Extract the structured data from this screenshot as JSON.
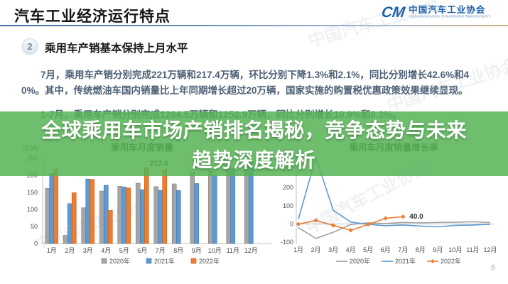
{
  "header": {
    "title": "汽车工业经济运行特点",
    "logo": {
      "mark": "CM",
      "name_cn": "中国汽车工业协会",
      "name_en": "China Association of Automobile Manufacturers",
      "brand_color": "#1b5fa8"
    }
  },
  "section": {
    "number": "2",
    "heading": "乘用车产销基本保持上月水平"
  },
  "paragraphs": {
    "p1": "7月，乘用车产销分别完成221万辆和217.4万辆，环比分别下降1.3%和2.1%，同比分别增长42.6%和40%。其中，传统燃油车国内销量比上年同期增长超过20万辆，国家实施的购置税优惠政策效果继续显现。",
    "p2": "1-7月，乘用车产销分别完成1264.5万辆和1252.9万辆，同比分别增长10.9%和8.3%。"
  },
  "overlay": {
    "line1": "全球乘用车市场产销排名揭秘，竞争态势与未来",
    "line2": "趋势深度解析",
    "bg_color": "#57b356"
  },
  "watermark": "中国汽车工业协会",
  "page_number": "6",
  "chart_data": [
    {
      "type": "bar",
      "title": "乘用车月度销量",
      "unit_label": "(万辆)",
      "categories": [
        "1月",
        "2月",
        "3月",
        "4月",
        "5月",
        "6月",
        "7月",
        "8月",
        "9月",
        "10月",
        "11月",
        "12月"
      ],
      "series": [
        {
          "name": "2020年",
          "color": "#a6a6a6",
          "stroke": "#7f7f7f",
          "values": [
            162,
            24,
            105,
            154,
            168,
            177,
            167,
            175,
            209,
            212,
            230,
            237
          ]
        },
        {
          "name": "2021年",
          "color": "#5b9bd5",
          "stroke": "#41719c",
          "values": [
            205,
            117,
            189,
            171,
            166,
            158,
            156,
            156,
            176,
            201,
            222,
            240
          ]
        },
        {
          "name": "2022年",
          "color": "#ed7d31",
          "stroke": "#c55a11",
          "values": [
            219,
            149,
            188,
            97,
            163,
            222,
            217.4
          ]
        }
      ],
      "ylim": [
        0,
        250
      ],
      "yticks": [
        0,
        50,
        100,
        150,
        200,
        250
      ],
      "grid": false,
      "legend_position": "bottom",
      "annotation": {
        "series_index": 2,
        "index": 6,
        "text": "217.4"
      }
    },
    {
      "type": "line",
      "title": "乘用车月度销量增长率",
      "unit_label": "%",
      "categories": [
        "1月",
        "2月",
        "3月",
        "4月",
        "5月",
        "6月",
        "7月",
        "8月",
        "9月",
        "10月",
        "11月",
        "12月"
      ],
      "series": [
        {
          "name": "2020年",
          "color": "#a0a0a0",
          "marker": false,
          "values": [
            -20,
            -80,
            -46,
            -3,
            6,
            2,
            8,
            6,
            8,
            9,
            12,
            7
          ]
        },
        {
          "name": "2021年",
          "color": "#5b9bd5",
          "marker": false,
          "values": [
            27,
            365,
            75,
            10,
            -2,
            -10,
            -6,
            -12,
            -16,
            -8,
            -6,
            -2
          ]
        },
        {
          "name": "2022年",
          "color": "#ed7d31",
          "marker": true,
          "values": [
            -1,
            19,
            -8,
            -35,
            -3,
            31,
            40
          ]
        }
      ],
      "ylim": [
        -100,
        400
      ],
      "yticks": [
        -100,
        0,
        100,
        200,
        300,
        400
      ],
      "grid": false,
      "legend_position": "bottom",
      "annotation": {
        "series_index": 2,
        "index": 6,
        "text": "40.0"
      }
    }
  ]
}
